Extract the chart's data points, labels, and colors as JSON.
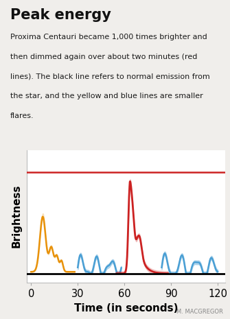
{
  "title": "Peak energy",
  "subtitle": "Proxima Centauri became 1,000 times brighter and\nthen dimmed again over about two minutes (red\nlines). The black line refers to normal emission from\nthe star, and the yellow and blue lines are smaller\nflares.",
  "xlabel": "Time (in seconds)",
  "ylabel": "Brightness",
  "xticks": [
    0,
    30,
    60,
    90,
    120
  ],
  "xlim": [
    -3,
    125
  ],
  "ylim": [
    -0.08,
    1.12
  ],
  "baseline_y": 0.0,
  "red_line_y": 0.92,
  "background_color": "#f0eeeb",
  "plot_bg_color": "#ffffff",
  "credit": "M. MACGREGOR",
  "orange_color": "#e8920a",
  "blue_color": "#4a9fd4",
  "red_color": "#cc2222"
}
